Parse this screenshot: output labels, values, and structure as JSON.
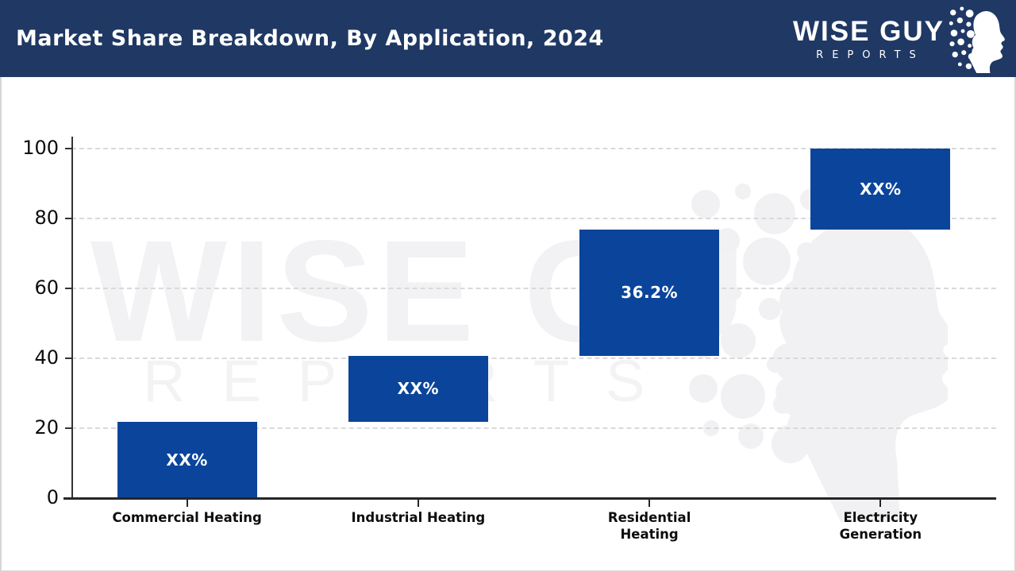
{
  "header": {
    "title": "Market Share Breakdown, By Application, 2024",
    "logo": {
      "name": "WISE GUY",
      "sub": "REPORTS"
    }
  },
  "watermark": {
    "name": "WISE GU",
    "sub": "REPORTS"
  },
  "colors": {
    "header_bg": "#1f3864",
    "bar": "#0a459b",
    "grid": "#d9d9d9",
    "axis": "#262626",
    "watermark": "#f2f2f4"
  },
  "chart_data": {
    "type": "bar",
    "subtype": "waterfall",
    "title": "Market Share Breakdown, By Application, 2024",
    "xlabel": "",
    "ylabel": "",
    "ylim": [
      0,
      100
    ],
    "yticks": [
      0,
      20,
      40,
      60,
      80,
      100
    ],
    "grid": "horizontal-dashed",
    "legend": "none",
    "categories": [
      "Commercial Heating",
      "Industrial Heating",
      "Residential Heating",
      "Electricity Generation"
    ],
    "category_label_lines": [
      "Commercial Heating",
      "Industrial Heating",
      "Residential\nHeating",
      "Electricity\nGeneration"
    ],
    "series": [
      {
        "name": "Market Share (%)",
        "segments": [
          {
            "category": "Commercial Heating",
            "start": 0,
            "end": 21.8,
            "label": "XX%"
          },
          {
            "category": "Industrial Heating",
            "start": 21.8,
            "end": 40.7,
            "label": "XX%"
          },
          {
            "category": "Residential Heating",
            "start": 40.7,
            "end": 76.9,
            "label": "36.2%"
          },
          {
            "category": "Electricity Generation",
            "start": 76.9,
            "end": 100,
            "label": "XX%"
          }
        ]
      }
    ]
  }
}
